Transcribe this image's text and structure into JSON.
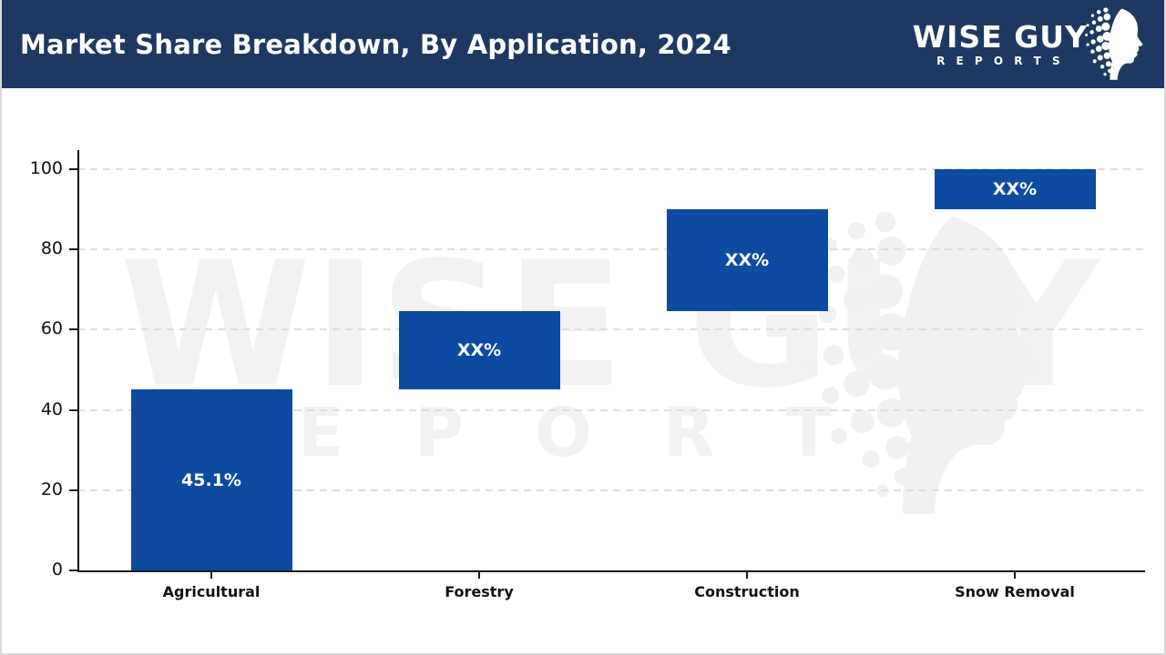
{
  "header": {
    "title": "Market Share Breakdown, By Application, 2024",
    "logo_primary": "WISE GUY",
    "logo_secondary": "R E P O R T S"
  },
  "watermark": {
    "primary": "WISE GUY",
    "secondary": "R E P O R T S"
  },
  "colors": {
    "header_bg": "#1f3863",
    "bar_fill": "#0d4aa0",
    "bar_label_text": "#ffffff",
    "axis": "#1a1a1a",
    "gridline": "#dedede",
    "watermark": "#f2f2f2",
    "border": "#d9d9d9"
  },
  "chart_data": {
    "type": "bar",
    "subtype": "waterfall",
    "title": "Market Share Breakdown, By Application, 2024",
    "xlabel": "",
    "ylabel": "",
    "categories": [
      "Agricultural",
      "Forestry",
      "Construction",
      "Snow Removal"
    ],
    "series": [
      {
        "category": "Agricultural",
        "start": 0,
        "end": 45.1,
        "value": 45.1,
        "label": "45.1%"
      },
      {
        "category": "Forestry",
        "start": 45.1,
        "end": 64.6,
        "value": 19.5,
        "label": "XX%"
      },
      {
        "category": "Construction",
        "start": 64.6,
        "end": 90.0,
        "value": 25.4,
        "label": "XX%"
      },
      {
        "category": "Snow Removal",
        "start": 90.0,
        "end": 100.0,
        "value": 10.0,
        "label": "XX%"
      }
    ],
    "yticks": [
      0,
      20,
      40,
      60,
      80,
      100
    ],
    "ylim": [
      0,
      105
    ],
    "grid": "horizontal-dashed",
    "legend": "none"
  }
}
